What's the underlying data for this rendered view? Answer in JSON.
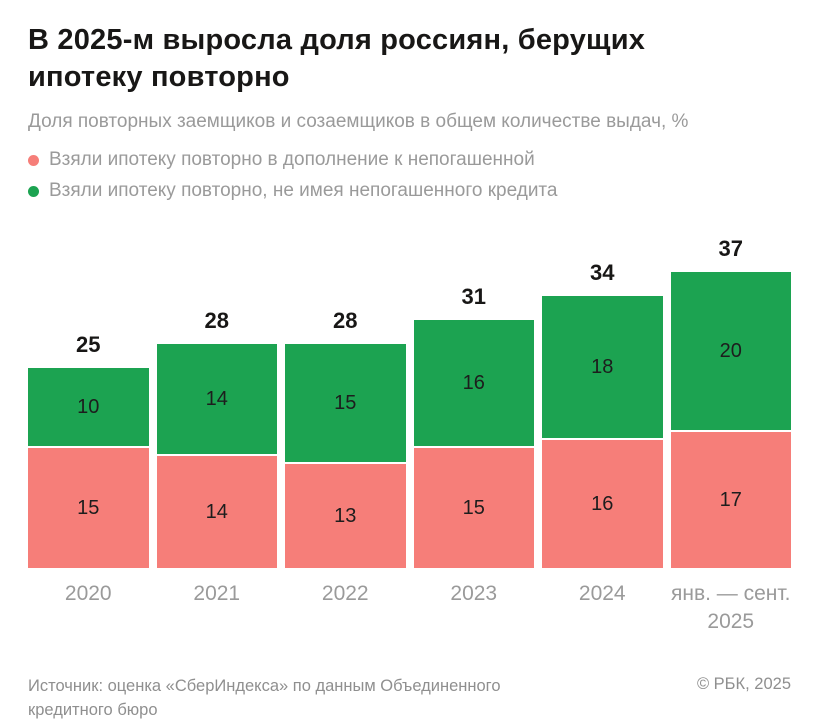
{
  "header": {
    "title": "В 2025-м выросла доля россиян, берущих ипотеку повторно",
    "subtitle": "Доля повторных заемщиков и созаемщиков в общем количестве выдач, %"
  },
  "legend": [
    {
      "label": "Взяли ипотеку повторно в дополнение к непогашенной",
      "color": "#f67e79"
    },
    {
      "label": "Взяли ипотеку повторно, не имея непогашенного кредита",
      "color": "#1ca351"
    }
  ],
  "chart_data": {
    "type": "bar",
    "stacked": true,
    "title": "В 2025-м выросла доля россиян, берущих ипотеку повторно",
    "subtitle": "Доля повторных заемщиков и созаемщиков в общем количестве выдач, %",
    "categories": [
      "2020",
      "2021",
      "2022",
      "2023",
      "2024",
      "янв. — сент.\n2025"
    ],
    "series": [
      {
        "name": "Взяли ипотеку повторно в дополнение к непогашенной",
        "color": "#f67e79",
        "values": [
          15,
          14,
          13,
          15,
          16,
          17
        ]
      },
      {
        "name": "Взяли ипотеку повторно, не имея непогашенного кредита",
        "color": "#1ca351",
        "values": [
          10,
          14,
          15,
          16,
          18,
          20
        ]
      }
    ],
    "totals": [
      25,
      28,
      28,
      31,
      34,
      37
    ],
    "ylim": [
      0,
      40
    ],
    "grid": false,
    "legend_position": "top"
  },
  "footer": {
    "source": "Источник: оценка «СберИндекса» по данным Объединенного кредитного бюро",
    "copyright": "© РБК, 2025"
  }
}
